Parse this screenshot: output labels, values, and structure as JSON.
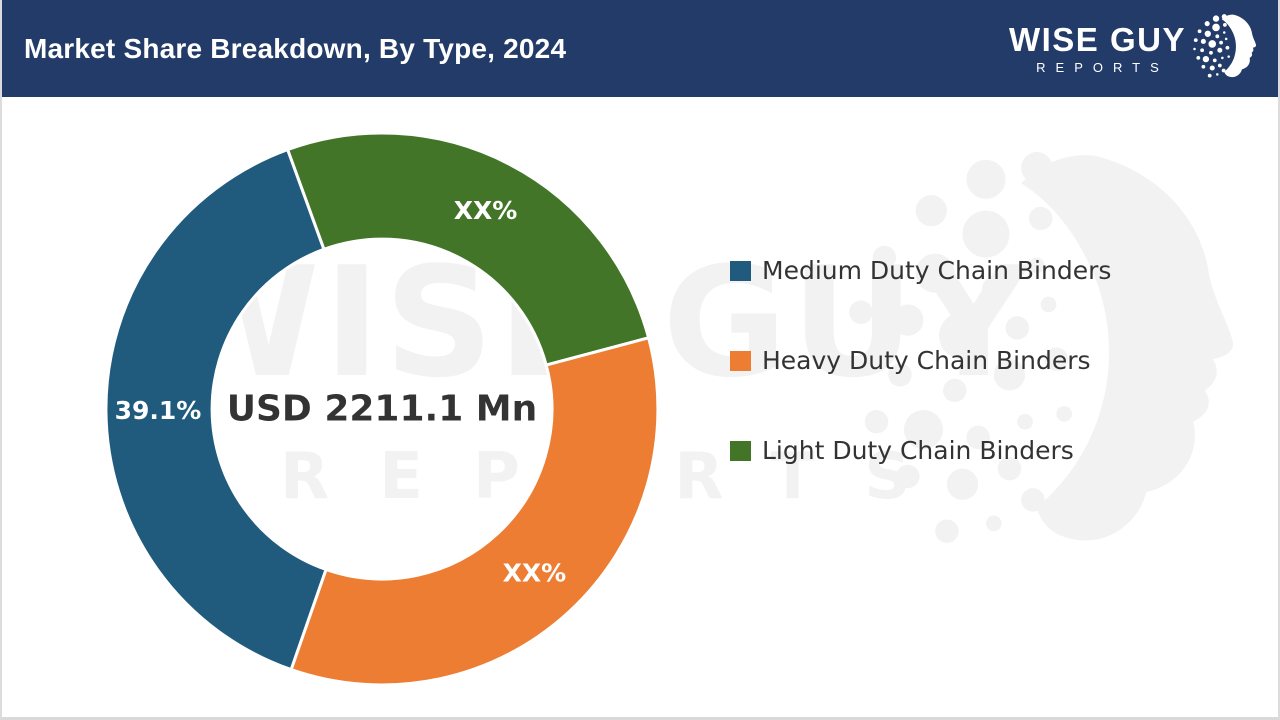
{
  "header": {
    "title": "Market Share Breakdown, By Type, 2024",
    "logo": {
      "line1": "WISE GUY",
      "line2": "REPORTS"
    }
  },
  "watermark": {
    "line1": "WISE GUY",
    "line2": "REPORTS"
  },
  "colors": {
    "header_bg": "#223B68",
    "header_text": "#ffffff",
    "blue": "#205B7E",
    "orange": "#EC7D33",
    "green": "#427527",
    "dark_text": "#333333",
    "watermark": "#f2f2f2"
  },
  "chart_data": {
    "type": "pie",
    "subtype": "donut",
    "title": "Market Share Breakdown, By Type, 2024",
    "center_label": "USD 2211.1 Mn",
    "start_angle_deg": -110,
    "legend_position": "right",
    "slices": [
      {
        "name": "Light Duty Chain Binders",
        "display_label": "XX%",
        "visual_share_pct": 26.4,
        "color": "#427527"
      },
      {
        "name": "Heavy Duty Chain Binders",
        "display_label": "XX%",
        "visual_share_pct": 34.5,
        "color": "#EC7D33"
      },
      {
        "name": "Medium Duty Chain Binders",
        "display_label": "39.1%",
        "visual_share_pct": 39.1,
        "color": "#205B7E"
      }
    ]
  },
  "legend": {
    "items": [
      {
        "label": "Medium Duty Chain Binders",
        "color": "#205B7E"
      },
      {
        "label": "Heavy Duty Chain Binders",
        "color": "#EC7D33"
      },
      {
        "label": "Light Duty Chain Binders",
        "color": "#427527"
      }
    ]
  }
}
